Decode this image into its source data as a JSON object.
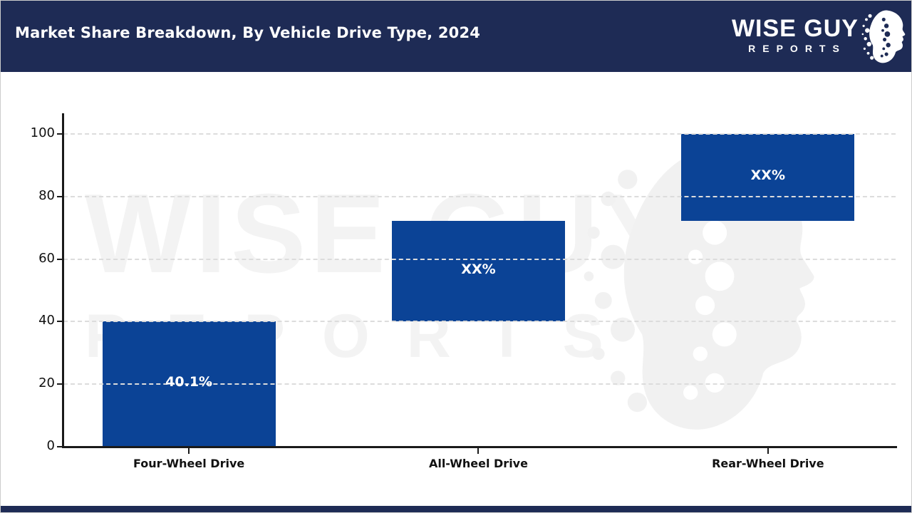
{
  "header": {
    "title": "Market Share Breakdown, By Vehicle Drive Type, 2024",
    "logo": {
      "line1": "WISE GUY",
      "line2": "REPORTS"
    }
  },
  "watermark": {
    "line1": "WISE GUY",
    "line2": "REPORTS"
  },
  "colors": {
    "header_bg": "#1e2b55",
    "bar": "#0b4396",
    "bar_label": "#ffffff",
    "grid": "#dcdcdc",
    "axis": "#1a1a1a",
    "watermark": "#f2f2f2"
  },
  "chart_data": {
    "type": "bar",
    "subtype": "waterfall",
    "title": "Market Share Breakdown, By Vehicle Drive Type, 2024",
    "categories": [
      "Four-Wheel Drive",
      "All-Wheel Drive",
      "Rear-Wheel Drive"
    ],
    "segments": [
      {
        "category": "Four-Wheel Drive",
        "start": 0,
        "end": 40.1,
        "label": "40.1%"
      },
      {
        "category": "All-Wheel Drive",
        "start": 40.1,
        "end": 72.1,
        "label": "XX%"
      },
      {
        "category": "Rear-Wheel Drive",
        "start": 72.1,
        "end": 100,
        "label": "XX%"
      }
    ],
    "xlabel": "",
    "ylabel": "",
    "ylim": [
      0,
      100
    ],
    "yticks": [
      0,
      20,
      40,
      60,
      80,
      100
    ],
    "grid": "horizontal-dashed",
    "legend": "none",
    "bar_value_labels_inside": true
  }
}
